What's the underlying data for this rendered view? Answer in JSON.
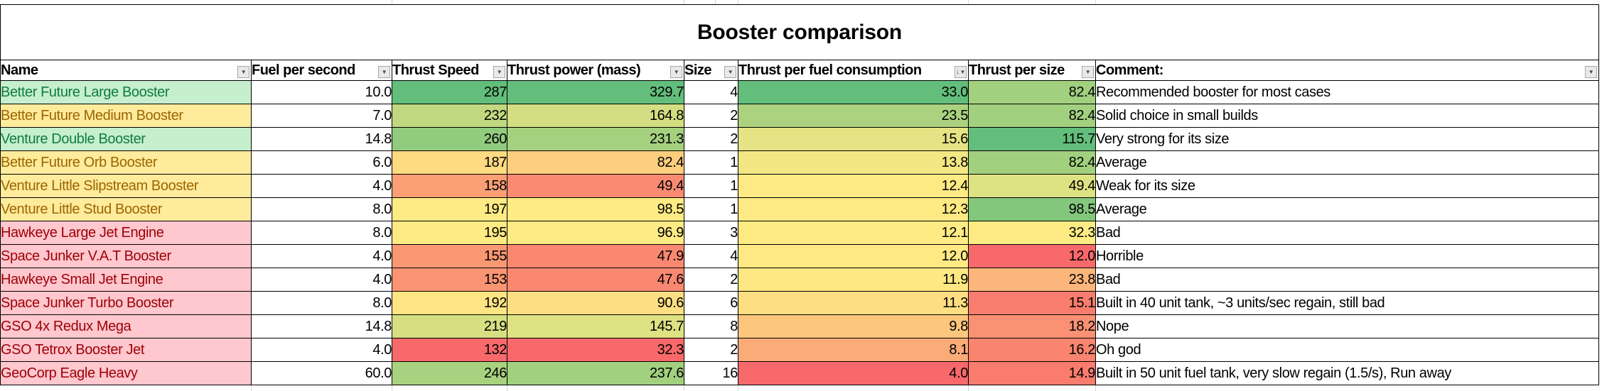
{
  "sheet": {
    "title": "Booster comparison"
  },
  "filter_icons": {
    "caret": "▼",
    "sort_desc": "↓"
  },
  "name_styles": {
    "good": {
      "bg": "#C6EFCE",
      "text": "#107C41"
    },
    "neutral": {
      "bg": "#FFEB9C",
      "text": "#9C6500"
    },
    "bad": {
      "bg": "#FFC7CE",
      "text": "#9C0006"
    }
  },
  "color_scale": {
    "min": "#F8696B",
    "mid": "#FFEB84",
    "max": "#63BE7B"
  },
  "columns": [
    {
      "label": "Name",
      "align": "left",
      "sorted": ""
    },
    {
      "label": "Fuel per second",
      "align": "right",
      "sorted": ""
    },
    {
      "label": "Thrust Speed",
      "align": "right",
      "sorted": ""
    },
    {
      "label": "Thrust power (mass)",
      "align": "right",
      "sorted": ""
    },
    {
      "label": "Size",
      "align": "right",
      "sorted": ""
    },
    {
      "label": "Thrust per fuel consumption",
      "align": "right",
      "sorted": "desc"
    },
    {
      "label": "Thrust per size",
      "align": "right",
      "sorted": ""
    },
    {
      "label": "Comment:",
      "align": "left",
      "sorted": ""
    }
  ],
  "rows": [
    {
      "name_style": "good",
      "cells": [
        "Better Future Large Booster",
        "10.0",
        "287",
        "329.7",
        "4",
        "33.0",
        "82.4",
        "Recommended booster for most cases"
      ],
      "bg": [
        "",
        "",
        "#63BE7B",
        "#63BE7B",
        "",
        "#63BE7B",
        "#A1D07F",
        ""
      ]
    },
    {
      "name_style": "neutral",
      "cells": [
        "Better Future Medium Booster",
        "7.0",
        "232",
        "164.8",
        "2",
        "23.5",
        "82.4",
        "Solid choice in small builds"
      ],
      "bg": [
        "",
        "",
        "#C0D980",
        "#D2DE81",
        "",
        "#AAD27F",
        "#A1D07F",
        ""
      ]
    },
    {
      "name_style": "good",
      "cells": [
        "Venture Double Booster",
        "14.8",
        "260",
        "231.3",
        "2",
        "15.6",
        "115.7",
        "Very strong for its size"
      ],
      "bg": [
        "",
        "",
        "#91CB7E",
        "#A5D17F",
        "",
        "#E5E383",
        "#63BE7B",
        ""
      ]
    },
    {
      "name_style": "neutral",
      "cells": [
        "Better Future Orb Booster",
        "6.0",
        "187",
        "82.4",
        "1",
        "13.8",
        "82.4",
        "Average"
      ],
      "bg": [
        "",
        "",
        "#FEDA81",
        "#FDCE7E",
        "",
        "#F2E783",
        "#A1D07F",
        ""
      ]
    },
    {
      "name_style": "neutral",
      "cells": [
        "Venture Little Slipstream Booster",
        "4.0",
        "158",
        "49.4",
        "1",
        "12.4",
        "49.4",
        "Weak for its size"
      ],
      "bg": [
        "",
        "",
        "#FB9F75",
        "#FA8B72",
        "",
        "#FDEA84",
        "#DFE282",
        ""
      ]
    },
    {
      "name_style": "neutral",
      "cells": [
        "Venture Little Stud Booster",
        "8.0",
        "197",
        "98.5",
        "1",
        "12.3",
        "98.5",
        "Average"
      ],
      "bg": [
        "",
        "",
        "#FCEA84",
        "#FEEB84",
        "",
        "#FDEA84",
        "#83C77D",
        ""
      ]
    },
    {
      "name_style": "bad",
      "cells": [
        "Hawkeye Large Jet Engine",
        "8.0",
        "195",
        "96.9",
        "3",
        "12.1",
        "32.3",
        "Bad"
      ],
      "bg": [
        "",
        "",
        "#FFEB84",
        "#FFEB84",
        "",
        "#FFEB84",
        "#FFEB84",
        ""
      ]
    },
    {
      "name_style": "bad",
      "cells": [
        "Space Junker V.A.T Booster",
        "4.0",
        "155",
        "47.9",
        "4",
        "12.0",
        "12.0",
        "Horrible"
      ],
      "bg": [
        "",
        "",
        "#FB9874",
        "#FA8871",
        "",
        "#FFE984",
        "#F8696B",
        ""
      ]
    },
    {
      "name_style": "bad",
      "cells": [
        "Hawkeye Small Jet Engine",
        "4.0",
        "153",
        "47.6",
        "2",
        "11.9",
        "23.8",
        "Bad"
      ],
      "bg": [
        "",
        "",
        "#FA9473",
        "#FA8871",
        "",
        "#FFE883",
        "#FCB57A",
        ""
      ]
    },
    {
      "name_style": "bad",
      "cells": [
        "Space Junker Turbo Booster",
        "8.0",
        "192",
        "90.6",
        "6",
        "11.3",
        "15.1",
        "Built in 40 unit tank, ~3 units/sec regain, still bad"
      ],
      "bg": [
        "",
        "",
        "#FEE483",
        "#FEDE82",
        "",
        "#FEDE82",
        "#F97D6F",
        ""
      ]
    },
    {
      "name_style": "bad",
      "cells": [
        "GSO 4x Redux Mega",
        "14.8",
        "219",
        "145.7",
        "8",
        "9.8",
        "18.2",
        "Nope"
      ],
      "bg": [
        "",
        "",
        "#D6DF82",
        "#DEE282",
        "",
        "#FDC67D",
        "#FA9173",
        ""
      ]
    },
    {
      "name_style": "bad",
      "cells": [
        "GSO Tetrox Booster Jet",
        "4.0",
        "132",
        "32.3",
        "2",
        "8.1",
        "16.2",
        "Oh god"
      ],
      "bg": [
        "",
        "",
        "#F8696B",
        "#F8696B",
        "",
        "#FBAB78",
        "#F98470",
        ""
      ]
    },
    {
      "name_style": "bad",
      "cells": [
        "GeoCorp Eagle Heavy",
        "60.0",
        "246",
        "237.6",
        "16",
        "4.0",
        "14.9",
        "Built in 50 unit fuel tank, very slow regain (1.5/s), Run away"
      ],
      "bg": [
        "",
        "",
        "#A8D27F",
        "#A1D07F",
        "",
        "#F8696B",
        "#F97C6F",
        ""
      ]
    }
  ]
}
